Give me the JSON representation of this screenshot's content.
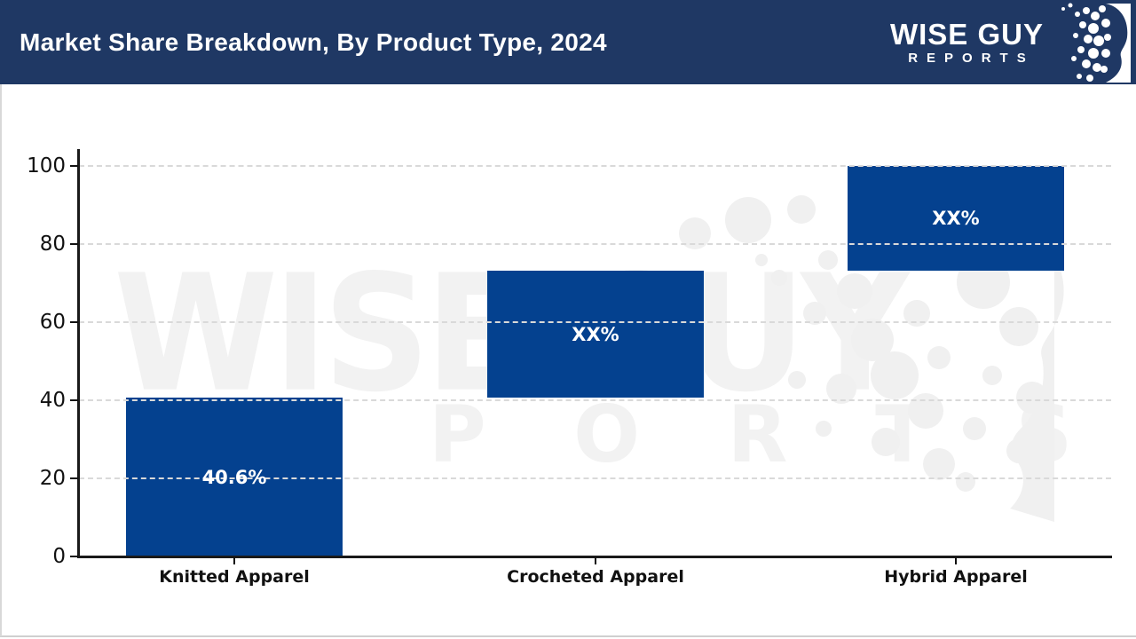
{
  "header": {
    "title": "Market Share Breakdown, By Product Type, 2024",
    "bg_color": "#1f3864",
    "logo": {
      "line1": "WISE GUY",
      "line2": "REPORTS"
    }
  },
  "watermark": {
    "line1": "WISE GUY",
    "line2": "R E P O R T S"
  },
  "chart_data": {
    "type": "bar",
    "subtype": "stacked-waterfall-percentage",
    "title": "Market Share Breakdown, By Product Type, 2024",
    "categories": [
      "Knitted Apparel",
      "Crocheted Apparel",
      "Hybrid Apparel"
    ],
    "values": [
      40.6,
      32.6,
      26.8
    ],
    "bar_labels": [
      "40.6%",
      "XX%",
      "XX%"
    ],
    "bar_ranges": [
      [
        0,
        40.6
      ],
      [
        40.6,
        73.2
      ],
      [
        73.2,
        100
      ]
    ],
    "ylim": [
      0,
      100
    ],
    "yticks": [
      0,
      20,
      40,
      60,
      80,
      100
    ],
    "xlabel": "",
    "ylabel": "",
    "grid": "horizontal-dashed",
    "legend": "none",
    "bar_color": "#04418f",
    "bar_label_color": "#ffffff",
    "axis_color": "#1a1a1a",
    "gridline_color": "#d9d9d9"
  }
}
